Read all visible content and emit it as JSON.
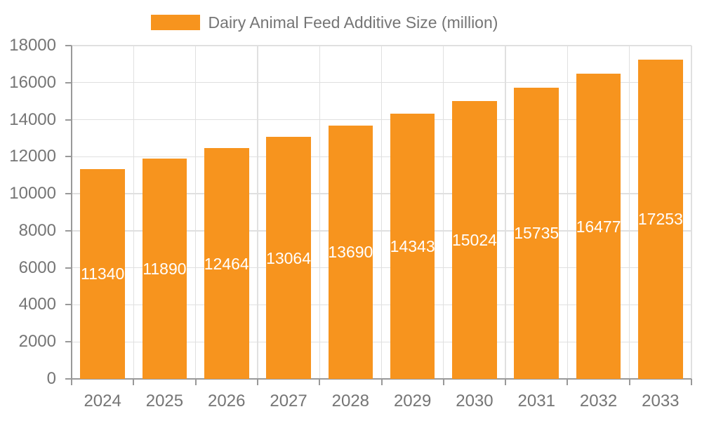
{
  "chart_data": {
    "type": "bar",
    "title": "",
    "legend": {
      "label": "Dairy Animal Feed Additive Size (million)",
      "position": "top"
    },
    "categories": [
      "2024",
      "2025",
      "2026",
      "2027",
      "2028",
      "2029",
      "2030",
      "2031",
      "2032",
      "2033"
    ],
    "series": [
      {
        "name": "Dairy Animal Feed Additive Size (million)",
        "values": [
          11340,
          11890,
          12464,
          13064,
          13690,
          14343,
          15024,
          15735,
          16477,
          17253
        ]
      }
    ],
    "xlabel": "",
    "ylabel": "",
    "ylim": [
      0,
      18000
    ],
    "yticks": [
      0,
      2000,
      4000,
      6000,
      8000,
      10000,
      12000,
      14000,
      16000,
      18000
    ],
    "grid": true,
    "value_labels": "centered-in-bar",
    "colors": {
      "bar": "#F7941E",
      "value_label": "#FFFFFF",
      "axis_label": "#757575",
      "axis_line": "#999999",
      "grid_line": "#E0E0E0",
      "background": "#FFFFFF"
    }
  }
}
